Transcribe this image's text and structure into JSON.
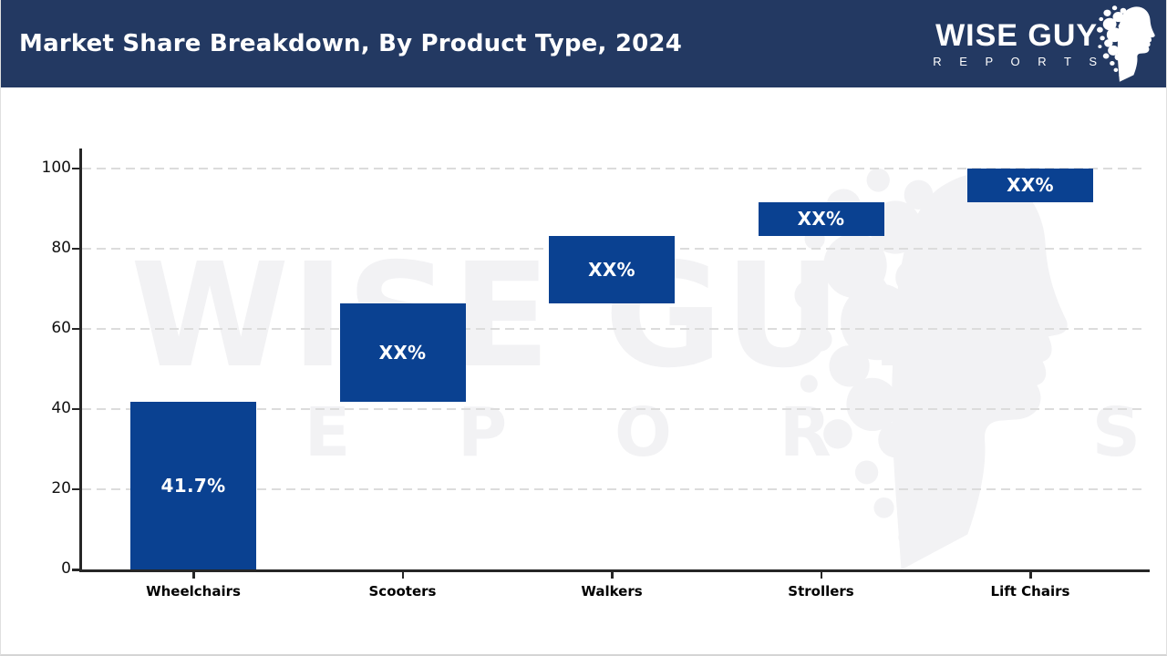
{
  "header": {
    "title": "Market Share Breakdown, By Product Type, 2024",
    "bg_color": "#233962",
    "logo": {
      "line1": "WISE GUY",
      "line2": "R E P O R T S"
    }
  },
  "watermark": {
    "line1": "WISE GUY",
    "line2": "R E P O R T S"
  },
  "chart_data": {
    "type": "bar",
    "subtype": "floating-waterfall",
    "title": "Market Share Breakdown, By Product Type, 2024",
    "categories": [
      "Wheelchairs",
      "Scooters",
      "Walkers",
      "Strollers",
      "Lift Chairs"
    ],
    "segments": [
      {
        "category": "Wheelchairs",
        "start": 0,
        "end": 41.7,
        "label": "41.7%"
      },
      {
        "category": "Scooters",
        "start": 41.7,
        "end": 66.4,
        "label": "XX%"
      },
      {
        "category": "Walkers",
        "start": 66.4,
        "end": 83.2,
        "label": "XX%"
      },
      {
        "category": "Strollers",
        "start": 83.2,
        "end": 91.6,
        "label": "XX%"
      },
      {
        "category": "Lift Chairs",
        "start": 91.6,
        "end": 100,
        "label": "XX%"
      }
    ],
    "ylim": [
      0,
      105
    ],
    "yticks": [
      0,
      20,
      40,
      60,
      80,
      100
    ],
    "grid": "horizontal-dashed",
    "legend": "none",
    "bar_color": "#0a4191",
    "bar_label_color": "#ffffff",
    "axis_color": "#262626",
    "grid_color": "#dcdcdc"
  }
}
